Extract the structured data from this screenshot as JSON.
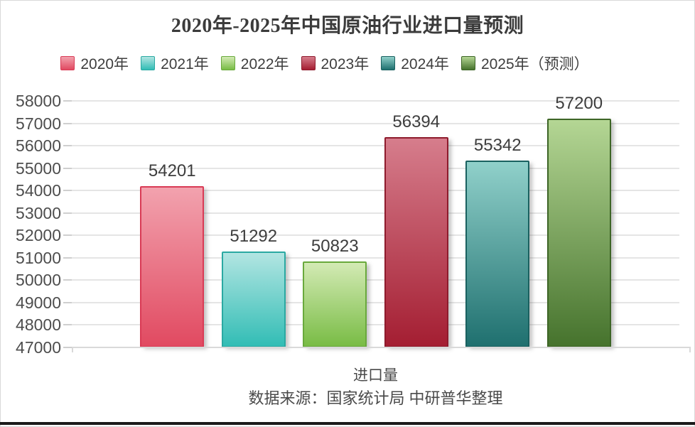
{
  "title": "2020年-2025年中国原油行业进口量预测",
  "x_axis_label": "进口量",
  "source_note": "数据来源：国家统计局 中研普华整理",
  "chart_data": {
    "type": "bar",
    "title": "2020年-2025年中国原油行业进口量预测",
    "categories": [
      "进口量"
    ],
    "series": [
      {
        "name": "2020年",
        "value": 54201,
        "fill_top": "#f2a2ae",
        "fill_bottom": "#e14a61",
        "border": "#d93b55"
      },
      {
        "name": "2021年",
        "value": 51292,
        "fill_top": "#b2e5e2",
        "fill_bottom": "#32bdb5",
        "border": "#2aa9a2"
      },
      {
        "name": "2022年",
        "value": 50823,
        "fill_top": "#d3eab4",
        "fill_bottom": "#79bc45",
        "border": "#69a93c"
      },
      {
        "name": "2023年",
        "value": 56394,
        "fill_top": "#d67d8c",
        "fill_bottom": "#a41e32",
        "border": "#8e1b2d"
      },
      {
        "name": "2024年",
        "value": 55342,
        "fill_top": "#90d0ca",
        "fill_bottom": "#1f706f",
        "border": "#1a6160"
      },
      {
        "name": "2025年（预测）",
        "value": 57200,
        "fill_top": "#b4d694",
        "fill_bottom": "#46732d",
        "border": "#3d6526"
      }
    ],
    "xlabel": "进口量",
    "ylabel": "",
    "ylim": [
      47000,
      58000
    ],
    "y_ticks": [
      58000,
      57000,
      56000,
      55000,
      54000,
      53000,
      52000,
      51000,
      50000,
      49000,
      48000,
      47000
    ],
    "grid": true,
    "legend_position": "top",
    "source": "数据来源：国家统计局 中研普华整理"
  },
  "colors": {
    "text": "#3d3d3d",
    "axis_text": "#4d4d4d",
    "gridline": "#e5e5e5",
    "frame": "#d9d9d9",
    "bottom_rule": "#1a1a1a"
  }
}
